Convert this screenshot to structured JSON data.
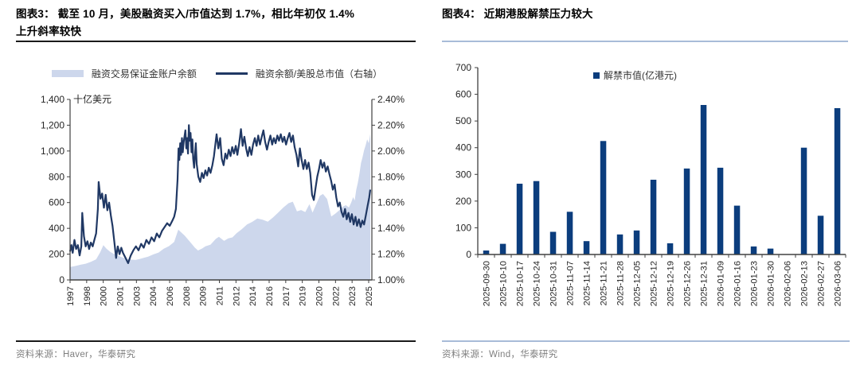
{
  "left_panel": {
    "title_line1": "图表3：  截至 10 月，美股融资买入/市值达到 1.7%，相比年初仅 1.4%",
    "title_line2": "上升斜率较快",
    "source": "资料来源：Haver，华泰研究",
    "rule_color": "#1a1a1a"
  },
  "right_panel": {
    "title": "图表4：  近期港股解禁压力较大",
    "source": "资料来源：Wind，华泰研究",
    "rule_color": "#a8bcd8"
  },
  "colors": {
    "area_fill": "#cdd7ec",
    "line_navy": "#203864",
    "bar_navy": "#0b3d7d",
    "axis": "#404040",
    "tick_text": "#262626"
  },
  "chart_data": [
    {
      "type": "area+line",
      "unit_label": "十亿美元",
      "legend": [
        {
          "label": "融资交易保证金账户余额",
          "kind": "area",
          "color": "#cdd7ec"
        },
        {
          "label": "融资余额/美股总市值（右轴）",
          "kind": "line",
          "color": "#203864"
        }
      ],
      "x_domain": [
        1997,
        2026
      ],
      "x_tick_labels": [
        "1997",
        "1998",
        "2000",
        "2001",
        "2003",
        "2004",
        "2006",
        "2008",
        "2009",
        "2011",
        "2012",
        "2014",
        "2016",
        "2017",
        "2019",
        "2020",
        "2022",
        "2023",
        "2025"
      ],
      "left_axis": {
        "min": 0,
        "max": 1400,
        "step": 200,
        "tick_labels": [
          "0",
          "200",
          "400",
          "600",
          "800",
          "1,000",
          "1,200",
          "1,400"
        ]
      },
      "right_axis": {
        "min": 1.0,
        "max": 2.4,
        "step": 0.2,
        "tick_labels": [
          "1.00%",
          "1.20%",
          "1.40%",
          "1.60%",
          "1.80%",
          "2.00%",
          "2.20%",
          "2.40%"
        ]
      },
      "area_series": {
        "name": "融资交易保证金账户余额",
        "points": [
          [
            1997.0,
            100
          ],
          [
            1997.5,
            108
          ],
          [
            1998.0,
            118
          ],
          [
            1998.5,
            126
          ],
          [
            1999.0,
            140
          ],
          [
            1999.5,
            160
          ],
          [
            1999.9,
            215
          ],
          [
            2000.2,
            270
          ],
          [
            2000.5,
            242
          ],
          [
            2000.9,
            215
          ],
          [
            2001.3,
            198
          ],
          [
            2001.7,
            185
          ],
          [
            2002.1,
            172
          ],
          [
            2002.5,
            163
          ],
          [
            2002.9,
            157
          ],
          [
            2003.3,
            155
          ],
          [
            2003.7,
            163
          ],
          [
            2004.1,
            172
          ],
          [
            2004.5,
            180
          ],
          [
            2005.0,
            198
          ],
          [
            2005.5,
            212
          ],
          [
            2006.0,
            242
          ],
          [
            2006.5,
            262
          ],
          [
            2007.0,
            295
          ],
          [
            2007.4,
            390
          ],
          [
            2007.6,
            375
          ],
          [
            2008.0,
            345
          ],
          [
            2008.5,
            298
          ],
          [
            2009.0,
            250
          ],
          [
            2009.3,
            228
          ],
          [
            2009.7,
            244
          ],
          [
            2010.0,
            260
          ],
          [
            2010.5,
            274
          ],
          [
            2011.0,
            318
          ],
          [
            2011.3,
            334
          ],
          [
            2011.8,
            303
          ],
          [
            2012.2,
            322
          ],
          [
            2012.6,
            330
          ],
          [
            2013.0,
            362
          ],
          [
            2013.5,
            393
          ],
          [
            2014.0,
            430
          ],
          [
            2014.5,
            450
          ],
          [
            2015.0,
            477
          ],
          [
            2015.5,
            467
          ],
          [
            2016.0,
            452
          ],
          [
            2016.5,
            484
          ],
          [
            2017.0,
            523
          ],
          [
            2017.5,
            562
          ],
          [
            2018.0,
            595
          ],
          [
            2018.4,
            607
          ],
          [
            2018.8,
            532
          ],
          [
            2019.2,
            542
          ],
          [
            2019.6,
            527
          ],
          [
            2020.0,
            587
          ],
          [
            2020.3,
            522
          ],
          [
            2020.6,
            577
          ],
          [
            2021.0,
            652
          ],
          [
            2021.3,
            667
          ],
          [
            2021.7,
            628
          ],
          [
            2022.1,
            492
          ],
          [
            2022.5,
            515
          ],
          [
            2022.9,
            543
          ],
          [
            2023.2,
            568
          ],
          [
            2023.5,
            580
          ],
          [
            2023.8,
            562
          ],
          [
            2024.0,
            598
          ],
          [
            2024.2,
            642
          ],
          [
            2024.35,
            615
          ],
          [
            2024.5,
            700
          ],
          [
            2024.65,
            755
          ],
          [
            2024.8,
            820
          ],
          [
            2024.95,
            905
          ],
          [
            2025.1,
            950
          ],
          [
            2025.25,
            1005
          ],
          [
            2025.4,
            1045
          ],
          [
            2025.55,
            1090
          ],
          [
            2025.7,
            1060
          ],
          [
            2025.85,
            1130
          ]
        ]
      },
      "line_series": {
        "name": "融资余额/美股总市值（右轴）",
        "points": [
          [
            1997.0,
            1.22
          ],
          [
            1997.13,
            1.27
          ],
          [
            1997.25,
            1.21
          ],
          [
            1997.42,
            1.31
          ],
          [
            1997.58,
            1.24
          ],
          [
            1997.75,
            1.27
          ],
          [
            1997.92,
            1.19
          ],
          [
            1998.08,
            1.26
          ],
          [
            1998.17,
            1.52
          ],
          [
            1998.33,
            1.34
          ],
          [
            1998.5,
            1.26
          ],
          [
            1998.67,
            1.3
          ],
          [
            1998.83,
            1.24
          ],
          [
            1999.0,
            1.29
          ],
          [
            1999.17,
            1.26
          ],
          [
            1999.33,
            1.31
          ],
          [
            1999.5,
            1.36
          ],
          [
            1999.67,
            1.55
          ],
          [
            1999.75,
            1.76
          ],
          [
            1999.92,
            1.63
          ],
          [
            2000.08,
            1.67
          ],
          [
            2000.25,
            1.56
          ],
          [
            2000.42,
            1.66
          ],
          [
            2000.58,
            1.54
          ],
          [
            2000.75,
            1.6
          ],
          [
            2000.92,
            1.5
          ],
          [
            2001.08,
            1.42
          ],
          [
            2001.25,
            1.3
          ],
          [
            2001.42,
            1.17
          ],
          [
            2001.58,
            1.26
          ],
          [
            2001.75,
            1.2
          ],
          [
            2001.92,
            1.25
          ],
          [
            2002.08,
            1.21
          ],
          [
            2002.33,
            1.17
          ],
          [
            2002.58,
            1.13
          ],
          [
            2002.83,
            1.19
          ],
          [
            2003.08,
            1.23
          ],
          [
            2003.33,
            1.26
          ],
          [
            2003.58,
            1.23
          ],
          [
            2003.83,
            1.28
          ],
          [
            2004.08,
            1.25
          ],
          [
            2004.33,
            1.31
          ],
          [
            2004.58,
            1.28
          ],
          [
            2004.83,
            1.33
          ],
          [
            2005.08,
            1.3
          ],
          [
            2005.33,
            1.36
          ],
          [
            2005.58,
            1.33
          ],
          [
            2005.83,
            1.38
          ],
          [
            2006.08,
            1.41
          ],
          [
            2006.33,
            1.44
          ],
          [
            2006.58,
            1.42
          ],
          [
            2006.83,
            1.46
          ],
          [
            2007.0,
            1.49
          ],
          [
            2007.17,
            1.55
          ],
          [
            2007.33,
            1.78
          ],
          [
            2007.42,
            2.02
          ],
          [
            2007.5,
            1.93
          ],
          [
            2007.58,
            2.06
          ],
          [
            2007.67,
            1.97
          ],
          [
            2007.75,
            2.1
          ],
          [
            2007.83,
            1.99
          ],
          [
            2007.92,
            2.07
          ],
          [
            2008.08,
            2.16
          ],
          [
            2008.17,
            2.02
          ],
          [
            2008.25,
            2.1
          ],
          [
            2008.33,
            1.98
          ],
          [
            2008.42,
            2.2
          ],
          [
            2008.5,
            2.08
          ],
          [
            2008.58,
            2.14
          ],
          [
            2008.67,
            1.99
          ],
          [
            2008.75,
            2.09
          ],
          [
            2008.83,
            1.94
          ],
          [
            2008.92,
            1.87
          ],
          [
            2009.08,
            2.06
          ],
          [
            2009.17,
            1.9
          ],
          [
            2009.33,
            1.8
          ],
          [
            2009.5,
            1.76
          ],
          [
            2009.67,
            1.83
          ],
          [
            2009.83,
            1.79
          ],
          [
            2010.0,
            1.85
          ],
          [
            2010.17,
            1.81
          ],
          [
            2010.33,
            1.87
          ],
          [
            2010.5,
            1.83
          ],
          [
            2010.67,
            1.89
          ],
          [
            2010.83,
            1.96
          ],
          [
            2011.0,
            2.08
          ],
          [
            2011.08,
            2.13
          ],
          [
            2011.25,
            2.02
          ],
          [
            2011.42,
            2.1
          ],
          [
            2011.58,
            1.94
          ],
          [
            2011.75,
            1.89
          ],
          [
            2011.92,
            1.98
          ],
          [
            2012.08,
            1.94
          ],
          [
            2012.25,
            2.01
          ],
          [
            2012.42,
            1.96
          ],
          [
            2012.58,
            2.03
          ],
          [
            2012.75,
            1.98
          ],
          [
            2012.92,
            2.04
          ],
          [
            2013.08,
            1.97
          ],
          [
            2013.25,
            2.06
          ],
          [
            2013.42,
            2.17
          ],
          [
            2013.58,
            2.04
          ],
          [
            2013.75,
            2.11
          ],
          [
            2013.92,
            2.02
          ],
          [
            2014.08,
            1.96
          ],
          [
            2014.25,
            2.03
          ],
          [
            2014.42,
            1.97
          ],
          [
            2014.58,
            2.05
          ],
          [
            2014.75,
            2.1
          ],
          [
            2014.92,
            2.04
          ],
          [
            2015.08,
            2.12
          ],
          [
            2015.25,
            2.05
          ],
          [
            2015.42,
            2.11
          ],
          [
            2015.58,
            2.16
          ],
          [
            2015.75,
            2.07
          ],
          [
            2015.92,
            2.01
          ],
          [
            2016.08,
            2.07
          ],
          [
            2016.25,
            2.12
          ],
          [
            2016.42,
            2.05
          ],
          [
            2016.58,
            2.1
          ],
          [
            2016.75,
            2.06
          ],
          [
            2016.92,
            2.12
          ],
          [
            2017.08,
            2.08
          ],
          [
            2017.25,
            2.13
          ],
          [
            2017.42,
            2.07
          ],
          [
            2017.58,
            2.11
          ],
          [
            2017.75,
            2.05
          ],
          [
            2017.92,
            2.1
          ],
          [
            2018.08,
            2.14
          ],
          [
            2018.25,
            2.07
          ],
          [
            2018.42,
            2.12
          ],
          [
            2018.58,
            2.03
          ],
          [
            2018.75,
            1.97
          ],
          [
            2018.92,
            1.88
          ],
          [
            2019.08,
            2.02
          ],
          [
            2019.25,
            1.93
          ],
          [
            2019.42,
            1.86
          ],
          [
            2019.58,
            1.93
          ],
          [
            2019.75,
            1.86
          ],
          [
            2019.92,
            1.91
          ],
          [
            2020.08,
            1.83
          ],
          [
            2020.25,
            1.66
          ],
          [
            2020.42,
            1.62
          ],
          [
            2020.58,
            1.71
          ],
          [
            2020.75,
            1.8
          ],
          [
            2020.92,
            1.86
          ],
          [
            2021.08,
            1.93
          ],
          [
            2021.25,
            1.87
          ],
          [
            2021.42,
            1.91
          ],
          [
            2021.58,
            1.84
          ],
          [
            2021.75,
            1.88
          ],
          [
            2021.92,
            1.82
          ],
          [
            2022.08,
            1.77
          ],
          [
            2022.25,
            1.7
          ],
          [
            2022.42,
            1.74
          ],
          [
            2022.58,
            1.64
          ],
          [
            2022.75,
            1.57
          ],
          [
            2022.92,
            1.6
          ],
          [
            2023.08,
            1.53
          ],
          [
            2023.25,
            1.49
          ],
          [
            2023.42,
            1.55
          ],
          [
            2023.58,
            1.47
          ],
          [
            2023.75,
            1.52
          ],
          [
            2023.92,
            1.45
          ],
          [
            2024.08,
            1.51
          ],
          [
            2024.25,
            1.43
          ],
          [
            2024.42,
            1.49
          ],
          [
            2024.58,
            1.42
          ],
          [
            2024.75,
            1.47
          ],
          [
            2024.92,
            1.41
          ],
          [
            2025.08,
            1.46
          ],
          [
            2025.25,
            1.43
          ],
          [
            2025.42,
            1.5
          ],
          [
            2025.58,
            1.57
          ],
          [
            2025.75,
            1.64
          ],
          [
            2025.85,
            1.7
          ]
        ]
      }
    },
    {
      "type": "bar",
      "legend_label": "解禁市值(亿港元)",
      "bar_color": "#0b3d7d",
      "categories": [
        "2025-09-30",
        "2025-10-10",
        "2025-10-17",
        "2025-10-24",
        "2025-10-31",
        "2025-11-07",
        "2025-11-14",
        "2025-11-21",
        "2025-11-28",
        "2025-12-05",
        "2025-12-12",
        "2025-12-19",
        "2025-12-26",
        "2025-12-31",
        "2026-01-09",
        "2026-01-16",
        "2026-01-23",
        "2026-01-30",
        "2026-02-06",
        "2026-02-13",
        "2026-02-27",
        "2026-03-06"
      ],
      "values": [
        15,
        40,
        265,
        275,
        85,
        160,
        50,
        425,
        75,
        90,
        280,
        42,
        322,
        560,
        325,
        183,
        30,
        22,
        0,
        400,
        145,
        548
      ],
      "y_axis": {
        "min": 0,
        "max": 700,
        "step": 100,
        "tick_labels": [
          "0",
          "100",
          "200",
          "300",
          "400",
          "500",
          "600",
          "700"
        ]
      }
    }
  ]
}
